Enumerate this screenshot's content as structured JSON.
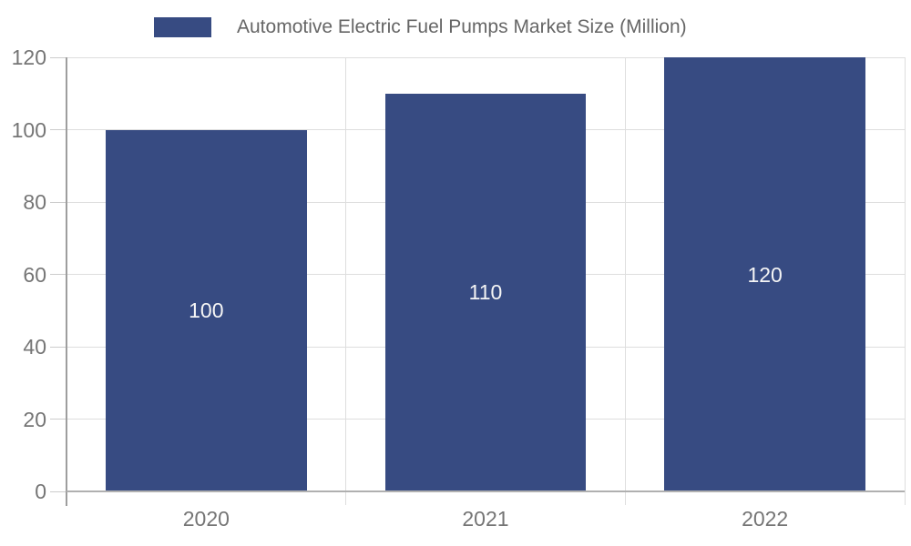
{
  "chart_data": {
    "type": "bar",
    "title": "Automotive Electric Fuel Pumps Market Size (Million)",
    "categories": [
      "2020",
      "2021",
      "2022"
    ],
    "values": [
      100,
      110,
      120
    ],
    "series": [
      {
        "name": "Automotive Electric Fuel Pumps Market Size (Million)",
        "values": [
          100,
          110,
          120
        ]
      }
    ],
    "xlabel": "",
    "ylabel": "",
    "ylim": [
      0,
      120
    ],
    "yticks": [
      0,
      20,
      40,
      60,
      80,
      100,
      120
    ],
    "grid": true,
    "legend_position": "top-center",
    "bar_value_labels_shown": true
  },
  "legend": {
    "label": "Automotive Electric Fuel Pumps Market Size (Million)"
  },
  "colors": {
    "bar": "#374b82",
    "value_label": "#f5f5f5",
    "tick_label": "#757575",
    "legend_label": "#666666",
    "gridline": "#dedede",
    "tick_mark": "#cccccc",
    "axis_line": "#9e9e9e",
    "baseline": "#b0b0b0",
    "background": "#ffffff"
  }
}
